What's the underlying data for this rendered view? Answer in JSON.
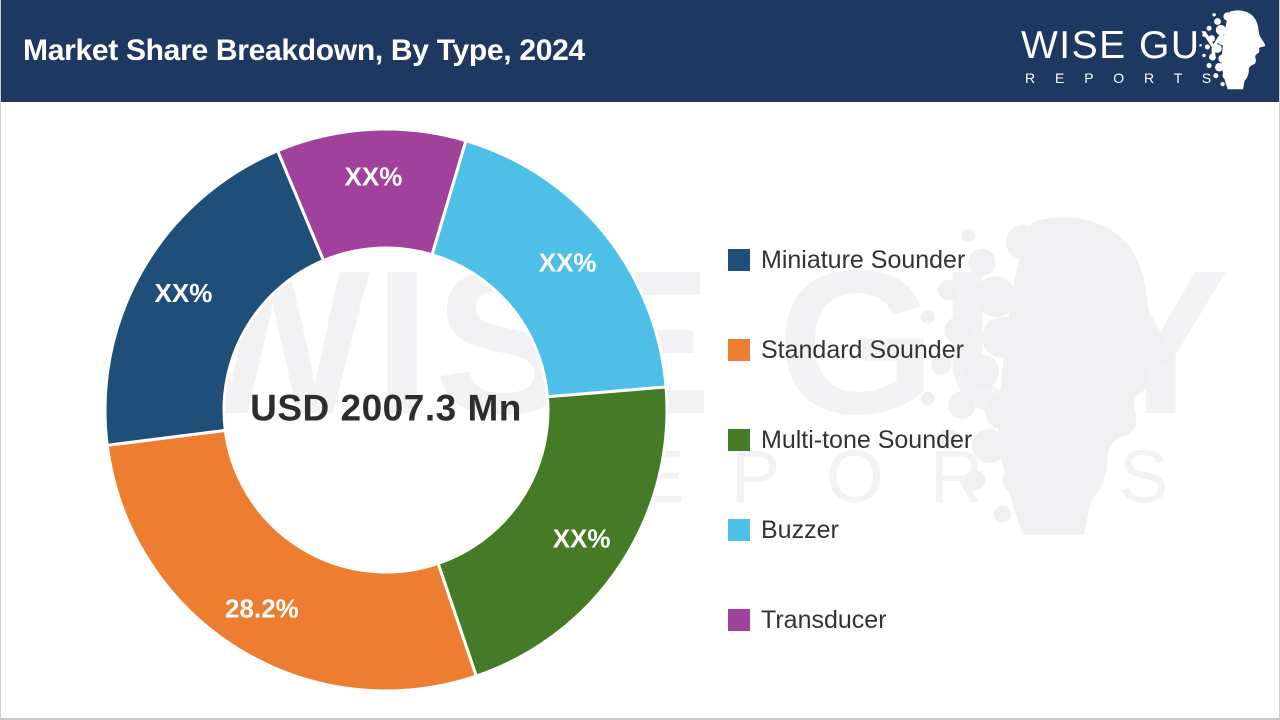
{
  "header": {
    "title": "Market Share Breakdown, By Type, 2024",
    "logo": {
      "brand": "WISE GUY",
      "subbrand": "R E P O R T S"
    }
  },
  "watermark": {
    "line1": "WISE GUY",
    "line2": "REPORTS"
  },
  "chart_data": {
    "type": "pie",
    "subtype": "donut",
    "title": "Market Share Breakdown, By Type, 2024",
    "center_label": "USD 2007.3 Mn",
    "start_angle_deg": -22.7,
    "direction": "clockwise-reversed-order",
    "legend_position": "right",
    "colors": {
      "header_navy": "#1F3862",
      "center_text": "#2d2d2d",
      "slice_gap": "#ffffff"
    },
    "slices": [
      {
        "label": "Miniature Sounder",
        "display": "XX%",
        "value_pct": 20.7,
        "color": "#1F4E79"
      },
      {
        "label": "Standard Sounder",
        "display": "28.2%",
        "value_pct": 28.2,
        "color": "#ED7D31"
      },
      {
        "label": "Multi-tone Sounder",
        "display": "XX%",
        "value_pct": 21.1,
        "color": "#457A26"
      },
      {
        "label": "Buzzer",
        "display": "XX%",
        "value_pct": 19.1,
        "color": "#4EC0E8"
      },
      {
        "label": "Transducer",
        "display": "XX%",
        "value_pct": 10.9,
        "color": "#A0419B"
      }
    ]
  }
}
